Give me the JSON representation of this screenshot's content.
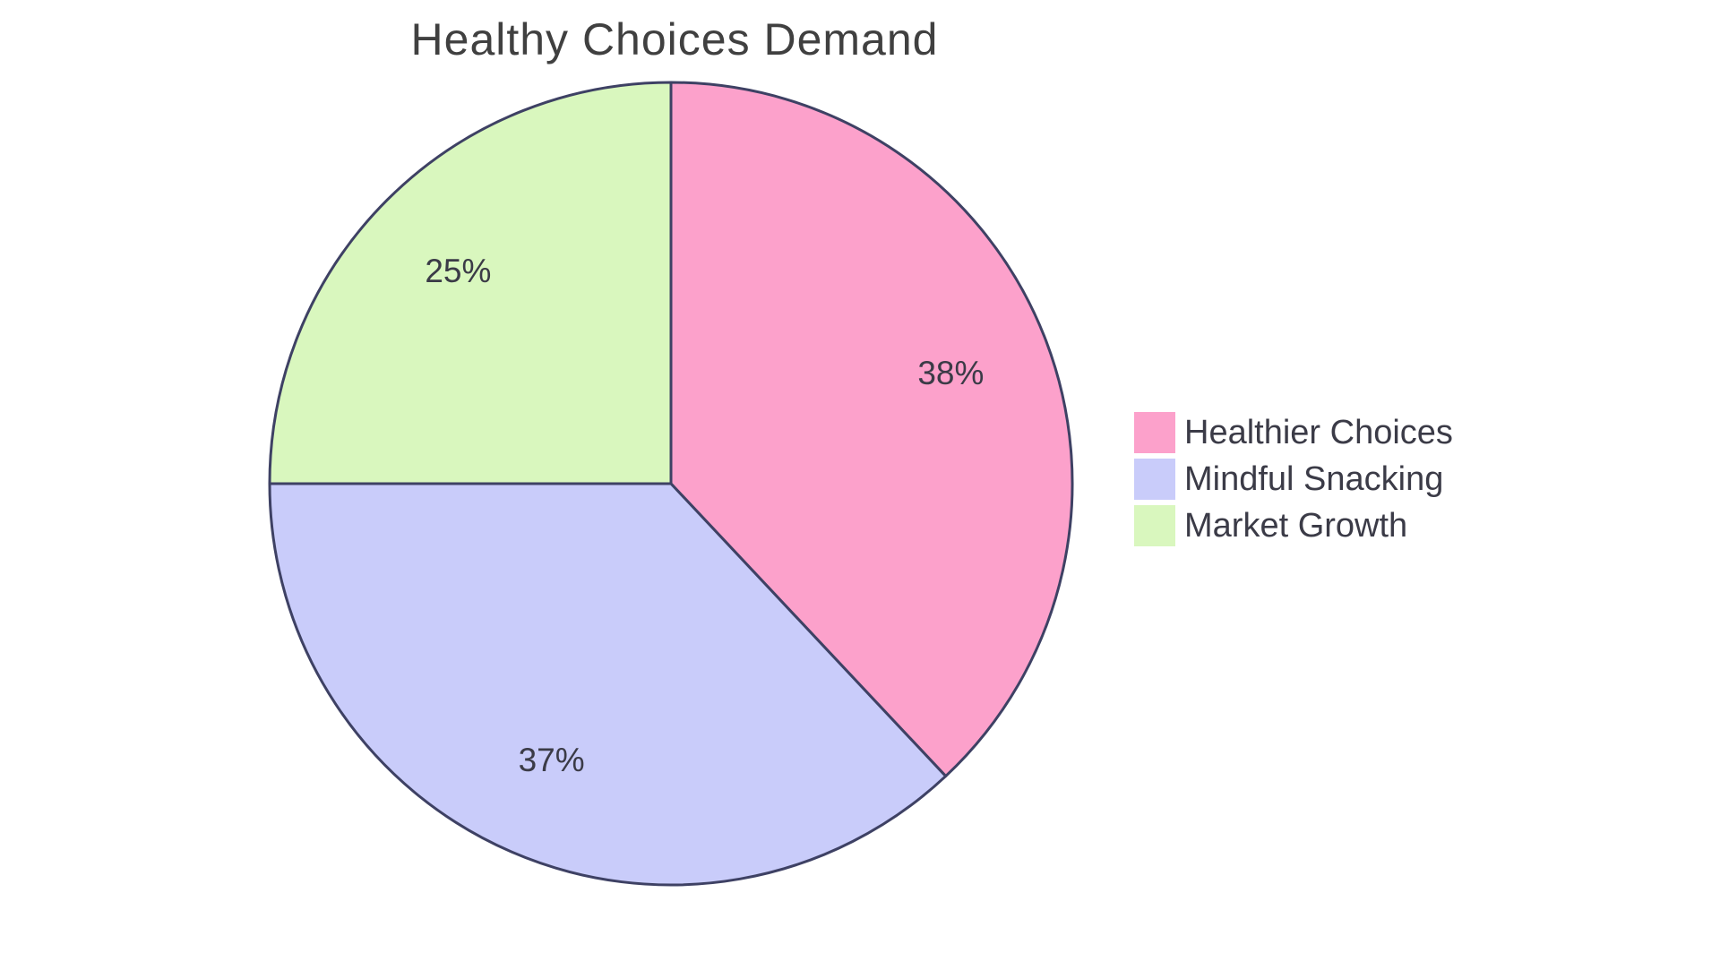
{
  "title": "Healthy Choices Demand",
  "chart_data": {
    "type": "pie",
    "title": "Healthy Choices Demand",
    "direction": "clockwise",
    "start_angle": "12-oclock",
    "legend_position": "right",
    "grid": false,
    "segments": [
      {
        "label": "Healthier Choices",
        "value": 38,
        "pct_label": "38%",
        "color": "#FCA1CB"
      },
      {
        "label": "Mindful Snacking",
        "value": 37,
        "pct_label": "37%",
        "color": "#C9CCFA"
      },
      {
        "label": "Market Growth",
        "value": 25,
        "pct_label": "25%",
        "color": "#D9F7BE"
      }
    ],
    "stroke_color": "#3E4164",
    "label_color": "#3B3B47",
    "title_color": "#404040",
    "background_color": "#FFFFFF"
  }
}
